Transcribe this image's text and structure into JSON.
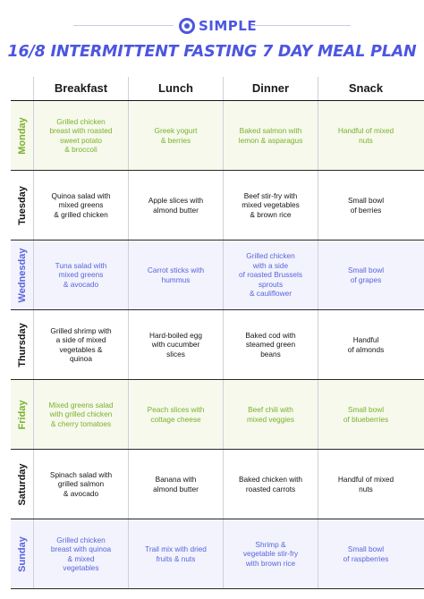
{
  "brand": {
    "name": "SIMPLE",
    "logo_icon": "circle-logo-icon",
    "accent": "#4c56e0"
  },
  "title": "16/8 INTERMITTENT FASTING 7 DAY MEAL PLAN",
  "colors": {
    "green_text": "#7cb02c",
    "green_bg": "#f6f9ec",
    "blue_text": "#5a63de",
    "blue_bg": "#f2f3fc"
  },
  "columns": [
    "Breakfast",
    "Lunch",
    "Dinner",
    "Snack"
  ],
  "days": [
    {
      "day": "Monday",
      "theme": "green",
      "meals": [
        "Grilled chicken\nbreast with roasted\nsweet potato\n& broccoli",
        "Greek yogurt\n& berries",
        "Baked salmon with\nlemon & asparagus",
        "Handful of mixed\nnuts"
      ]
    },
    {
      "day": "Tuesday",
      "theme": "white",
      "meals": [
        "Quinoa salad with\nmixed greens\n& grilled chicken",
        "Apple slices with\nalmond butter",
        "Beef stir-fry with\nmixed vegetables\n& brown rice",
        "Small bowl\nof berries"
      ]
    },
    {
      "day": "Wednesday",
      "theme": "blue",
      "meals": [
        "Tuna salad with\nmixed greens\n& avocado",
        "Carrot sticks with\nhummus",
        "Grilled chicken\nwith a side\nof roasted Brussels\nsprouts\n& cauliflower",
        "Small bowl\nof grapes"
      ]
    },
    {
      "day": "Thursday",
      "theme": "white",
      "meals": [
        "Grilled shrimp with\na side of mixed\nvegetables &\nquinoa",
        "Hard-boiled egg\nwith cucumber\nslices",
        "Baked cod with\nsteamed green\nbeans",
        "Handful\nof almonds"
      ]
    },
    {
      "day": "Friday",
      "theme": "green",
      "meals": [
        "Mixed greens salad\nwith grilled chicken\n& cherry tomatoes",
        "Peach slices with\ncottage cheese",
        "Beef chili with\nmixed veggies",
        "Small bowl\nof blueberries"
      ]
    },
    {
      "day": "Saturday",
      "theme": "white",
      "meals": [
        "Spinach salad with\ngrilled salmon\n& avocado",
        "Banana with\nalmond butter",
        "Baked chicken with\nroasted carrots",
        "Handful of mixed\nnuts"
      ]
    },
    {
      "day": "Sunday",
      "theme": "blue",
      "meals": [
        "Grilled chicken\nbreast with quinoa\n& mixed\nvegetables",
        "Trail mix with dried\nfruits & nuts",
        "Shrimp &\nvegetable stir-fry\nwith brown rice",
        "Small bowl\nof raspberries"
      ]
    }
  ]
}
